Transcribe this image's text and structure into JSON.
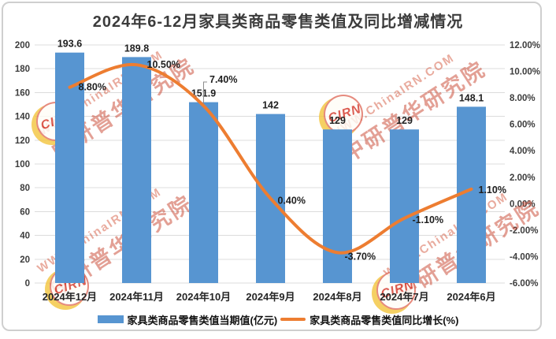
{
  "watermark": {
    "url_text": "WWW.ChinaIRN.COM",
    "org_text": "中研普华研究院",
    "logo_text": "CIRN",
    "color": "#c8432e"
  },
  "chart_data": {
    "type": "bar+line combo",
    "title": "2024年6-12月家具类商品零售类值及同比增减情况",
    "categories": [
      "2024年12月",
      "2024年11月",
      "2024年10月",
      "2024年9月",
      "2024年8月",
      "2024年7月",
      "2024年6月"
    ],
    "series": [
      {
        "name": "家具类商品零售类值当期值(亿元)",
        "type": "bar",
        "axis": "left",
        "color": "#5795d1",
        "values": [
          193.6,
          189.8,
          151.9,
          142,
          129,
          129,
          148.1
        ],
        "data_labels": [
          "193.6",
          "189.8",
          "151.9",
          "142",
          "129",
          "129",
          "148.1"
        ]
      },
      {
        "name": "家具类商品零售类值同比增长(%)",
        "type": "line",
        "axis": "right",
        "color": "#ed7d31",
        "values": [
          8.8,
          10.5,
          7.4,
          0.4,
          -3.7,
          -1.1,
          1.1
        ],
        "data_labels": [
          "8.80%",
          "10.50%",
          "7.40%",
          "0.40%",
          "-3.70%",
          "-1.10%",
          "1.10%"
        ]
      }
    ],
    "left_axis": {
      "min": 0,
      "max": 200,
      "step": 20,
      "tick_labels": [
        "0",
        "20",
        "40",
        "60",
        "80",
        "100",
        "120",
        "140",
        "160",
        "180",
        "200"
      ]
    },
    "right_axis": {
      "min": -6,
      "max": 12,
      "step": 2,
      "tick_labels": [
        "-6.00%",
        "-4.00%",
        "-2.00%",
        "0.00%",
        "2.00%",
        "4.00%",
        "6.00%",
        "8.00%",
        "10.00%",
        "12.00%"
      ]
    },
    "grid": true,
    "grid_color": "#dcdcdc",
    "legend_position": "bottom"
  }
}
